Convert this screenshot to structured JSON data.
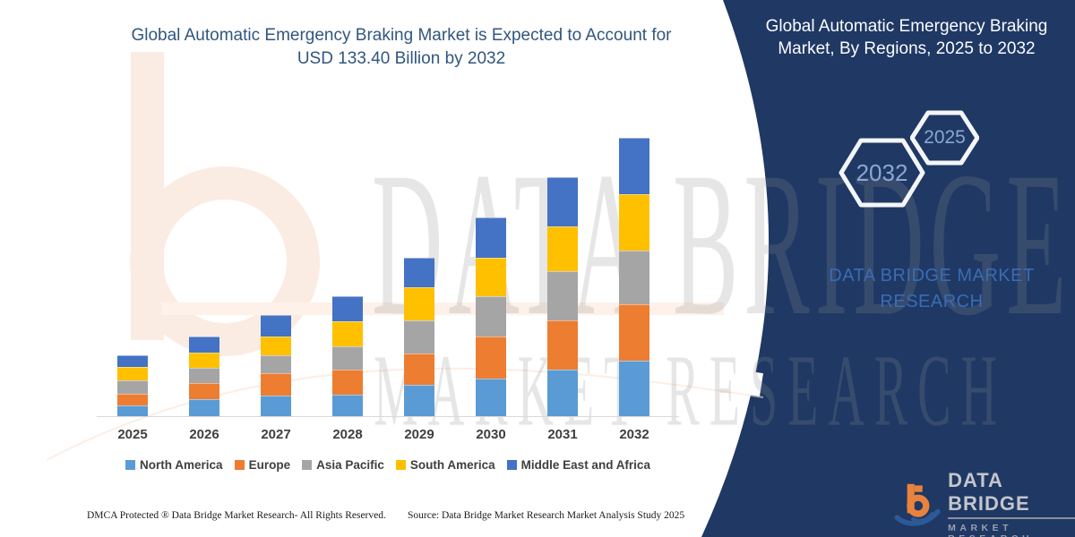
{
  "header": {
    "title_line1": "Global Automatic Emergency Braking Market is Expected to Account for",
    "title_line2": "USD 133.40 Billion by 2032"
  },
  "panel": {
    "title_line1": "Global Automatic Emergency Braking",
    "title_line2": "Market, By Regions, 2025 to 2032",
    "hexagons": [
      {
        "label": "2032"
      },
      {
        "label": "2025"
      }
    ],
    "brand_line1": "DATA BRIDGE MARKET",
    "brand_line2": "RESEARCH"
  },
  "watermark": {
    "line1": "DATA BRIDGE",
    "line2": "MARKET RESEARCH"
  },
  "chart_data": {
    "type": "bar",
    "stacked": true,
    "title": "Global Automatic Emergency Braking Market, By Regions, 2025 to 2032",
    "key_stat": "USD 133.40 Billion by 2032",
    "unit": "USD Billion",
    "categories": [
      "2025",
      "2026",
      "2027",
      "2028",
      "2029",
      "2030",
      "2031",
      "2032"
    ],
    "series": [
      {
        "name": "North America",
        "color": "#5b9bd5",
        "values": [
          5.1,
          8.1,
          9.9,
          10.3,
          15.0,
          18.0,
          22.3,
          26.6
        ]
      },
      {
        "name": "Europe",
        "color": "#ed7d31",
        "values": [
          5.6,
          7.7,
          10.7,
          12.0,
          15.0,
          20.2,
          23.6,
          27.0
        ]
      },
      {
        "name": "Asia Pacific",
        "color": "#a5a5a5",
        "values": [
          6.4,
          7.3,
          8.6,
          11.2,
          15.9,
          19.3,
          23.6,
          25.7
        ]
      },
      {
        "name": "South America",
        "color": "#ffc000",
        "values": [
          6.4,
          7.3,
          9.0,
          12.0,
          15.9,
          18.4,
          21.5,
          27.0
        ]
      },
      {
        "name": "Middle East and Africa",
        "color": "#4472c4",
        "values": [
          5.6,
          7.7,
          10.5,
          12.0,
          14.2,
          19.3,
          23.6,
          27.1
        ]
      }
    ],
    "totals": [
      29.1,
      38.1,
      48.7,
      57.5,
      76.0,
      95.2,
      114.6,
      133.4
    ],
    "ylim": [
      0,
      140
    ],
    "grid": false,
    "legend_position": "bottom"
  },
  "footer": {
    "left": "DMCA Protected ® Data Bridge Market Research-  All Rights Reserved.",
    "right": "Source: Data Bridge Market Research  Market Analysis Study 2025"
  },
  "logo": {
    "name": "DATA BRIDGE",
    "tagline": "MARKET RESEARCH"
  },
  "colors": {
    "panel_bg": "#1f3864",
    "header_text": "#31567f",
    "panel_brand_text": "#3a6cb4",
    "axis_text": "#3f3f3f",
    "logo_orange": "#e8823d",
    "logo_blue": "#2c5a96"
  }
}
